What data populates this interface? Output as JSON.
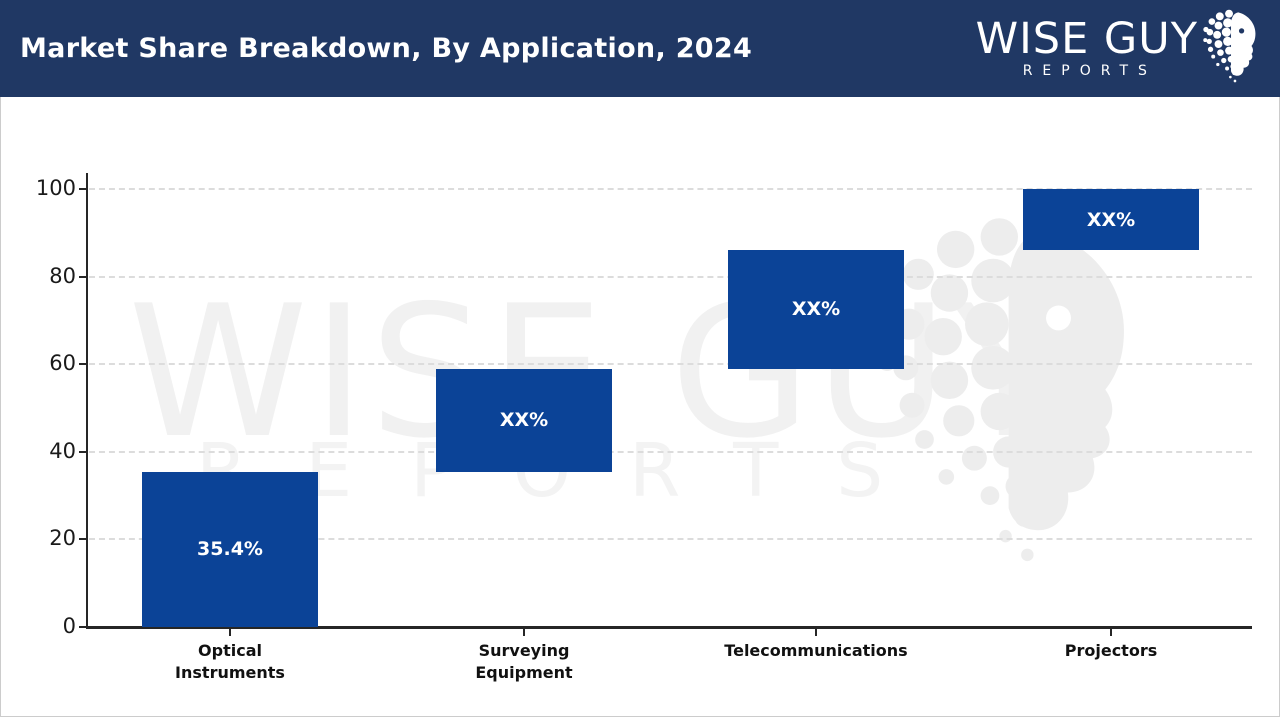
{
  "header": {
    "title": "Market Share Breakdown, By Application, 2024",
    "brand": {
      "name": "WISE GUY",
      "tagline": "REPORTS"
    }
  },
  "watermark": {
    "line1": "WISE GUY",
    "line2": "REPORTS"
  },
  "chart_data": {
    "type": "bar",
    "subtype": "waterfall",
    "title": "Market Share Breakdown, By Application, 2024",
    "xlabel": "",
    "ylabel": "",
    "ylim": [
      0,
      105
    ],
    "yticks": [
      0,
      20,
      40,
      60,
      80,
      100
    ],
    "grid": "horizontal-dashed",
    "legend": false,
    "bar_color": "#0b4397",
    "bar_label_color": "#ffffff",
    "categories": [
      "Optical\nInstruments",
      "Surveying\nEquipment",
      "Telecommunications",
      "Projectors"
    ],
    "segments": [
      {
        "category": "Optical Instruments",
        "start": 0,
        "end": 35.4,
        "label": "35.4%"
      },
      {
        "category": "Surveying Equipment",
        "start": 35.4,
        "end": 59,
        "label": "XX%"
      },
      {
        "category": "Telecommunications",
        "start": 59,
        "end": 86,
        "label": "XX%"
      },
      {
        "category": "Projectors",
        "start": 86,
        "end": 100,
        "label": "XX%"
      }
    ]
  },
  "colors": {
    "header_bg": "#203864",
    "bar": "#0b4397",
    "axis": "#262626",
    "grid": "#dcdcdc",
    "tick_label": "#1a1a1a",
    "watermark": "#f1f1f1"
  }
}
